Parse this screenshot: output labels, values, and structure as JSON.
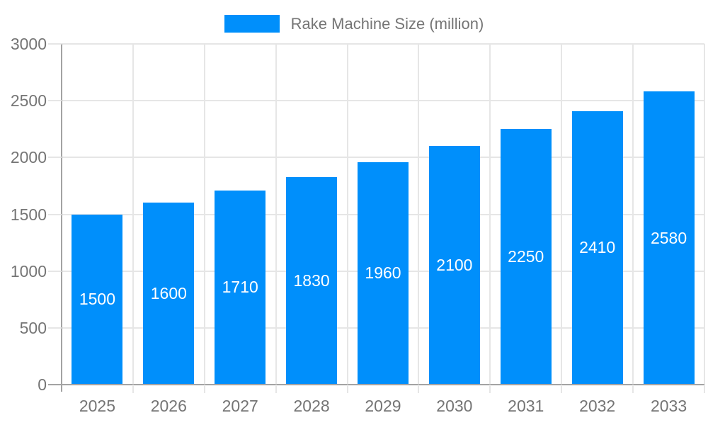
{
  "legend": {
    "label": "Rake Machine Size (million)"
  },
  "chart_data": {
    "type": "bar",
    "title": "Rake Machine Size (million)",
    "series": [
      {
        "name": "Rake Machine Size (million)",
        "values": [
          1500,
          1600,
          1710,
          1830,
          1960,
          2100,
          2250,
          2410,
          2580
        ]
      }
    ],
    "categories": [
      "2025",
      "2026",
      "2027",
      "2028",
      "2029",
      "2030",
      "2031",
      "2032",
      "2033"
    ],
    "values": [
      1500,
      1600,
      1710,
      1830,
      1960,
      2100,
      2250,
      2410,
      2580
    ],
    "xlabel": "",
    "ylabel": "",
    "ylim": [
      0,
      3000
    ],
    "yticks": [
      0,
      500,
      1000,
      1500,
      2000,
      2500,
      3000
    ],
    "grid": true,
    "legend_position": "top",
    "bar_value_labels_visible": true,
    "colors": {
      "bar": "#008FFB",
      "bar_label": "#FFFFFF",
      "axis_text": "#757575",
      "legend_text": "#757575",
      "axis_line": "#A3A3A3",
      "grid_line": "#E6E6E6",
      "background": "#FFFFFF"
    }
  }
}
